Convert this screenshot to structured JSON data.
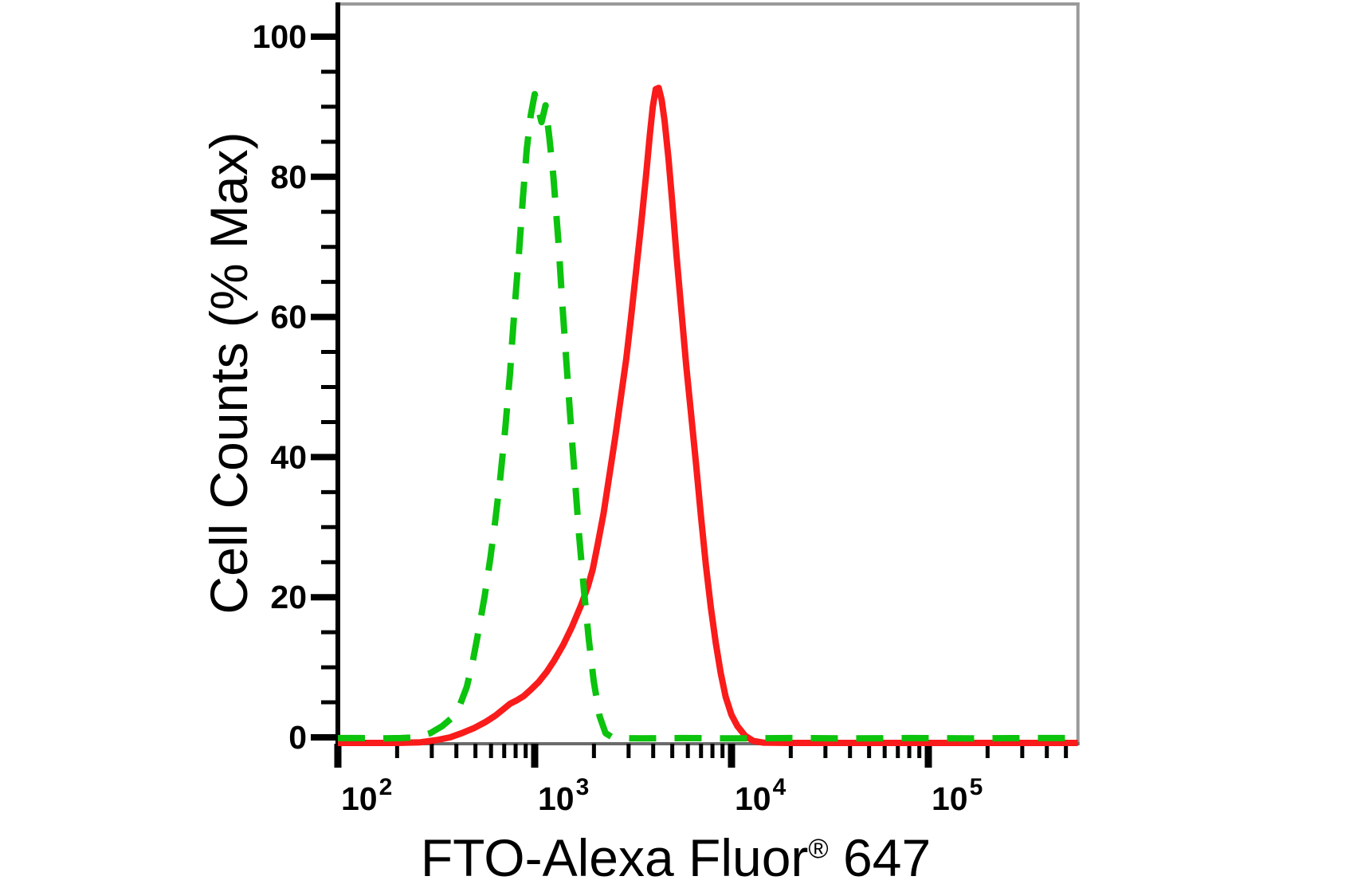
{
  "figure": {
    "y_axis_title": "Cell Counts (% Max)",
    "x_axis_title_pre": "FTO-Alexa Fluor",
    "x_axis_title_sup": "®",
    "x_axis_title_post": " 647"
  },
  "chart_data": {
    "type": "line",
    "title": "",
    "xlabel": "FTO-Alexa Fluor® 647",
    "ylabel": "Cell Counts (% Max)",
    "x_scale": "log10",
    "x_range_log10": [
      2.0,
      5.76
    ],
    "ylim": [
      0,
      100
    ],
    "grid": false,
    "legend": "none",
    "x_tick_base": "10",
    "x_major_tick_exponents": [
      2,
      3,
      4,
      5
    ],
    "x_minor_ticks_per_decade": [
      2,
      3,
      4,
      5,
      6,
      7,
      8,
      9
    ],
    "y_major_ticks": [
      0,
      20,
      40,
      60,
      80,
      100
    ],
    "y_minor_tick_step": 5,
    "axis_colors": {
      "left": "#000000",
      "bottom": "#6b6b6b",
      "top": "#9a9a9a",
      "right": "#9a9a9a",
      "ticks": "#000000"
    },
    "series": [
      {
        "name": "red_solid",
        "description": "solid red histogram, peak ~93% at ~4x10^3",
        "color": "#fa1b1b",
        "style": "solid",
        "line_width": 8,
        "points": [
          [
            2.0,
            -0.8
          ],
          [
            2.15,
            -0.8
          ],
          [
            2.3,
            -0.8
          ],
          [
            2.42,
            -0.7
          ],
          [
            2.5,
            -0.4
          ],
          [
            2.57,
            0.0
          ],
          [
            2.63,
            0.6
          ],
          [
            2.69,
            1.3
          ],
          [
            2.75,
            2.2
          ],
          [
            2.8,
            3.1
          ],
          [
            2.84,
            4.0
          ],
          [
            2.875,
            4.8
          ],
          [
            2.91,
            5.3
          ],
          [
            2.945,
            5.9
          ],
          [
            2.98,
            6.8
          ],
          [
            3.02,
            7.9
          ],
          [
            3.06,
            9.3
          ],
          [
            3.1,
            11.0
          ],
          [
            3.145,
            13.2
          ],
          [
            3.19,
            15.8
          ],
          [
            3.235,
            18.8
          ],
          [
            3.27,
            21.5
          ],
          [
            3.295,
            24.0
          ],
          [
            3.32,
            27.5
          ],
          [
            3.35,
            32.0
          ],
          [
            3.38,
            37.5
          ],
          [
            3.41,
            43.0
          ],
          [
            3.44,
            49.0
          ],
          [
            3.465,
            54.0
          ],
          [
            3.49,
            60.0
          ],
          [
            3.515,
            66.5
          ],
          [
            3.54,
            73.0
          ],
          [
            3.565,
            80.0
          ],
          [
            3.585,
            86.0
          ],
          [
            3.6,
            90.0
          ],
          [
            3.615,
            92.5
          ],
          [
            3.63,
            92.7
          ],
          [
            3.645,
            91.0
          ],
          [
            3.66,
            88.0
          ],
          [
            3.68,
            82.5
          ],
          [
            3.7,
            76.0
          ],
          [
            3.72,
            69.0
          ],
          [
            3.745,
            61.0
          ],
          [
            3.77,
            53.0
          ],
          [
            3.795,
            46.0
          ],
          [
            3.82,
            39.0
          ],
          [
            3.845,
            31.5
          ],
          [
            3.87,
            24.5
          ],
          [
            3.895,
            18.5
          ],
          [
            3.92,
            13.5
          ],
          [
            3.945,
            9.2
          ],
          [
            3.97,
            5.8
          ],
          [
            4.0,
            3.2
          ],
          [
            4.03,
            1.6
          ],
          [
            4.07,
            0.2
          ],
          [
            4.11,
            -0.5
          ],
          [
            4.16,
            -0.75
          ],
          [
            4.3,
            -0.8
          ],
          [
            4.6,
            -0.8
          ],
          [
            4.9,
            -0.8
          ],
          [
            5.2,
            -0.8
          ],
          [
            5.5,
            -0.8
          ],
          [
            5.76,
            -0.8
          ]
        ]
      },
      {
        "name": "green_dashed",
        "description": "dashed green histogram, peak ~92% at ~1x10^3",
        "color": "#0cc30e",
        "style": "dashed",
        "line_width": 8,
        "dash_pattern": [
          34,
          23
        ],
        "points": [
          [
            2.0,
            -0.1
          ],
          [
            2.1,
            -0.1
          ],
          [
            2.22,
            -0.15
          ],
          [
            2.32,
            -0.1
          ],
          [
            2.4,
            0.0
          ],
          [
            2.47,
            0.6
          ],
          [
            2.53,
            1.6
          ],
          [
            2.58,
            2.8
          ],
          [
            2.62,
            4.6
          ],
          [
            2.655,
            7.2
          ],
          [
            2.685,
            10.8
          ],
          [
            2.71,
            14.5
          ],
          [
            2.745,
            20.0
          ],
          [
            2.775,
            25.6
          ],
          [
            2.8,
            31.0
          ],
          [
            2.825,
            37.0
          ],
          [
            2.85,
            44.0
          ],
          [
            2.875,
            52.0
          ],
          [
            2.885,
            56.3
          ],
          [
            2.9,
            62.0
          ],
          [
            2.92,
            69.0
          ],
          [
            2.94,
            77.0
          ],
          [
            2.96,
            84.0
          ],
          [
            2.98,
            88.8
          ],
          [
            3.0,
            91.8
          ],
          [
            3.02,
            89.5
          ],
          [
            3.035,
            87.8
          ],
          [
            3.055,
            90.2
          ],
          [
            3.075,
            85.5
          ],
          [
            3.095,
            80.0
          ],
          [
            3.12,
            71.0
          ],
          [
            3.14,
            62.0
          ],
          [
            3.16,
            54.0
          ],
          [
            3.18,
            46.0
          ],
          [
            3.2,
            38.5
          ],
          [
            3.225,
            29.0
          ],
          [
            3.25,
            21.0
          ],
          [
            3.275,
            14.0
          ],
          [
            3.3,
            8.0
          ],
          [
            3.33,
            3.0
          ],
          [
            3.36,
            0.6
          ],
          [
            3.4,
            -0.1
          ],
          [
            3.55,
            -0.15
          ],
          [
            3.75,
            -0.1
          ],
          [
            4.0,
            -0.15
          ],
          [
            4.3,
            -0.1
          ],
          [
            4.6,
            -0.15
          ],
          [
            4.9,
            -0.1
          ],
          [
            5.2,
            -0.15
          ],
          [
            5.5,
            -0.1
          ],
          [
            5.74,
            -0.1
          ]
        ]
      }
    ]
  }
}
